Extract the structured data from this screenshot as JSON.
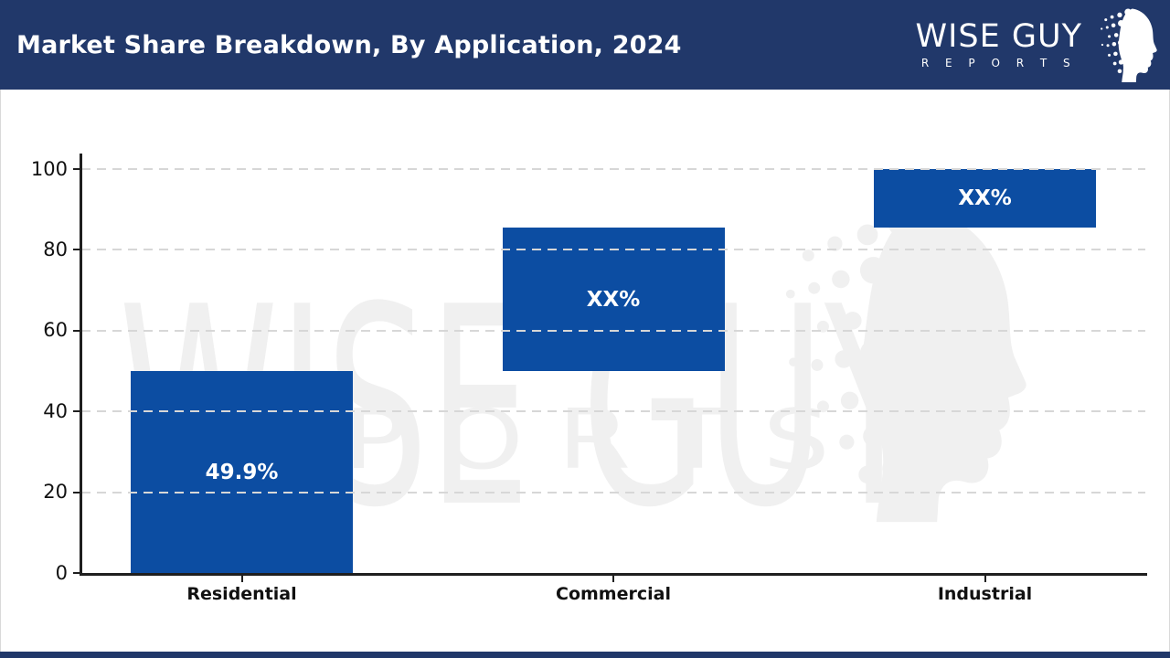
{
  "header": {
    "title": "Market Share Breakdown, By Application, 2024",
    "bg_color": "#21386a",
    "logo": {
      "line1": "WISE GUY",
      "line2": "R E P O R T S"
    }
  },
  "watermark": {
    "line1": "WISE GUY",
    "line2": "R E P O R T S"
  },
  "chart_data": {
    "type": "bar",
    "subtype": "floating-segment-percentage",
    "title": "Market Share Breakdown, By Application, 2024",
    "categories": [
      "Residential",
      "Commercial",
      "Industrial"
    ],
    "segments": [
      {
        "category": "Residential",
        "from": 0,
        "to": 49.9,
        "label": "49.9%"
      },
      {
        "category": "Commercial",
        "from": 49.9,
        "to": 85.5,
        "label": "XX%"
      },
      {
        "category": "Industrial",
        "from": 85.5,
        "to": 100,
        "label": "XX%"
      }
    ],
    "yticks": [
      0,
      20,
      40,
      60,
      80,
      100
    ],
    "ylim": [
      0,
      104
    ],
    "bar_color": "#0c4da2",
    "grid": "horizontal-dashed",
    "gridline_color": "#d7d7d7",
    "legend": null,
    "xlabel": "",
    "ylabel": ""
  }
}
